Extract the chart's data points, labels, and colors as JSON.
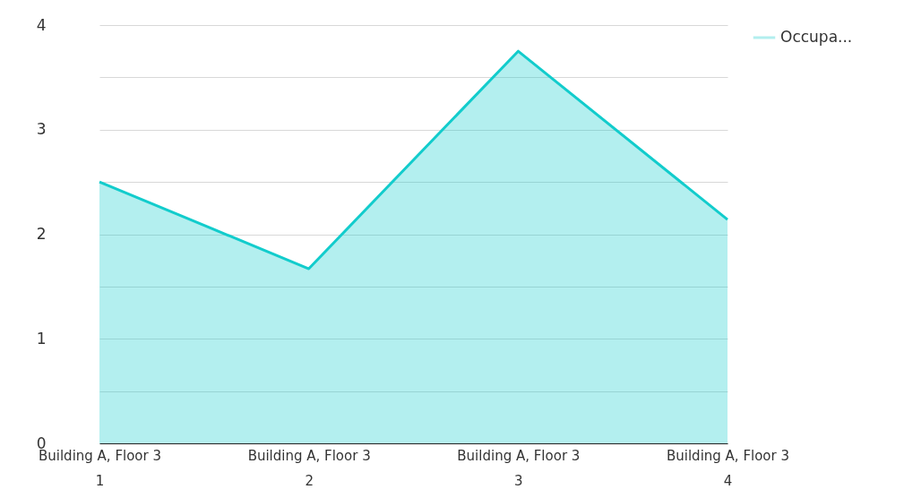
{
  "chart_data": {
    "type": "area",
    "categories": [
      "Building A, Floor 3 1",
      "Building A, Floor 3 2",
      "Building A, Floor 3 3",
      "Building A, Floor 3 4"
    ],
    "series": [
      {
        "name": "Occupa...",
        "color": "#12cccc",
        "values": [
          2.5,
          1.67,
          3.75,
          2.14
        ]
      }
    ],
    "ylim": [
      0,
      4
    ],
    "yticks": [
      0,
      {
        "value": 0.5,
        "label": null
      },
      1,
      {
        "value": 1.5,
        "label": null
      },
      2,
      {
        "value": 2.5,
        "label": null
      },
      3,
      {
        "value": 3.5,
        "label": null
      },
      4
    ],
    "grid": "y",
    "legend": "top right"
  }
}
